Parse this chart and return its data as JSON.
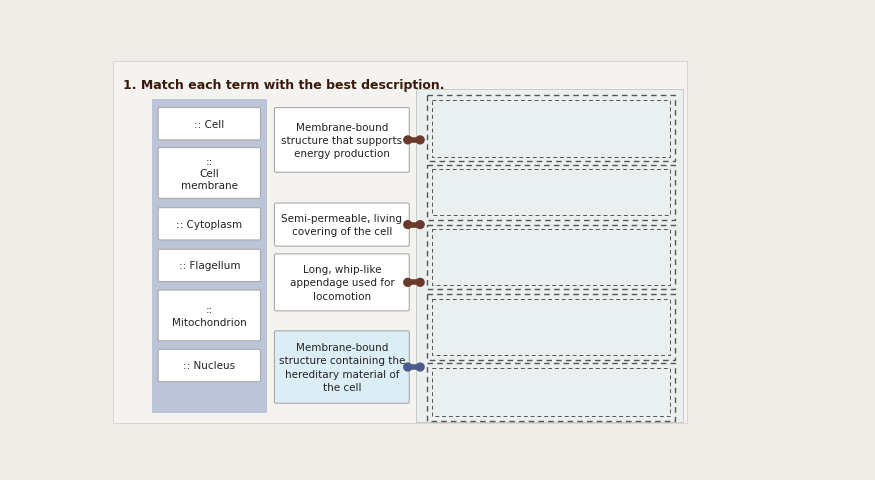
{
  "title": "1. Match each term with the best description.",
  "title_fontsize": 9,
  "bg_color": "#f0ede8",
  "paper_color": "#f5f3f0",
  "right_panel_color": "#eaf0f0",
  "left_panel_color": "#bcc4d8",
  "left_terms": [
    ":: Cell",
    "::\nCell\nmembrane",
    ":: Cytoplasm",
    ":: Flagellum",
    "::\nMitochondrion",
    ":: Nucleus"
  ],
  "descriptions": [
    "Membrane-bound\nstructure that supports\nenergy production",
    "Semi-permeable, living\ncovering of the cell",
    "Long, whip-like\nappendage used for\nlocomotion",
    "Membrane-bound\nstructure containing the\nhereditary material of\nthe cell"
  ],
  "connector_color_dark": "#6b3a2a",
  "connector_color_blue": "#4a5a8a",
  "dashed_box_color": "#555555",
  "white_box_color": "#ffffff",
  "desc_box_color": "#ffffff",
  "last_desc_color": "#dceef5",
  "text_color": "#222222",
  "font_size": 7.5,
  "title_color": "#3a1a0a"
}
